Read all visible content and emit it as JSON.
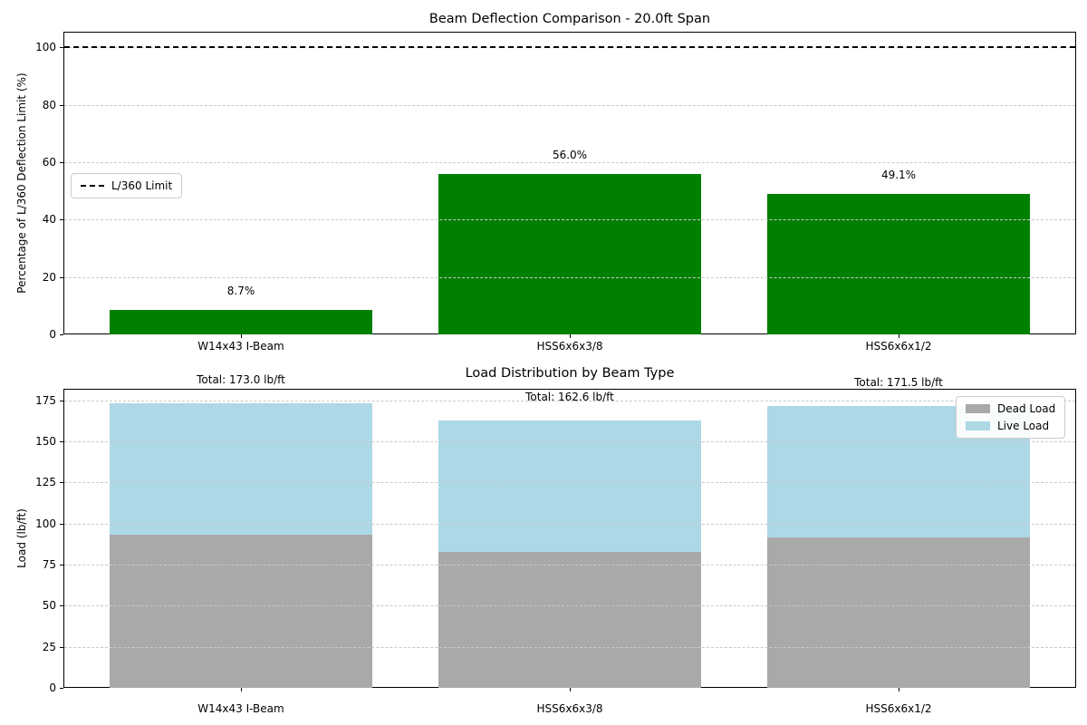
{
  "figure": {
    "background": "#ffffff"
  },
  "chart_data": [
    {
      "type": "bar",
      "title": "Beam Deflection Comparison - 20.0ft Span",
      "ylabel": "Percentage of L/360 Deflection Limit (%)",
      "xlabel": "",
      "categories": [
        "W14x43 I-Beam",
        "HSS6x6x3/8",
        "HSS6x6x1/2"
      ],
      "values": [
        8.7,
        56.0,
        49.1
      ],
      "bar_labels": [
        "8.7%",
        "56.0%",
        "49.1%"
      ],
      "bar_color": "#008000",
      "ylim": [
        0,
        105.5
      ],
      "ytick_values": [
        0,
        20,
        40,
        60,
        80,
        100
      ],
      "ytick_labels": [
        "0",
        "20",
        "40",
        "60",
        "80",
        "100"
      ],
      "grid": "horizontal dashed",
      "reference_line": {
        "value": 100,
        "style": "dashed",
        "color": "#000000",
        "label": "L/360 Limit"
      },
      "legend": {
        "position": "center-left",
        "entries": [
          {
            "label": "L/360 Limit",
            "swatch": "dashed-line",
            "color": "#000000"
          }
        ]
      }
    },
    {
      "type": "stacked-bar",
      "title": "Load Distribution by Beam Type",
      "ylabel": "Load (lb/ft)",
      "xlabel": "",
      "categories": [
        "W14x43 I-Beam",
        "HSS6x6x3/8",
        "HSS6x6x1/2"
      ],
      "series": [
        {
          "name": "Dead Load",
          "color": "#a9a9a9",
          "values": [
            93.0,
            82.6,
            91.5
          ]
        },
        {
          "name": "Live Load",
          "color": "#add8e6",
          "values": [
            80.0,
            80.0,
            80.0
          ]
        }
      ],
      "totals": [
        173.0,
        162.6,
        171.5
      ],
      "total_labels": [
        "Total: 173.0 lb/ft",
        "Total: 162.6 lb/ft",
        "Total: 171.5 lb/ft"
      ],
      "ylim": [
        0,
        182
      ],
      "ytick_values": [
        0,
        25,
        50,
        75,
        100,
        125,
        150,
        175
      ],
      "ytick_labels": [
        "0",
        "25",
        "50",
        "75",
        "100",
        "125",
        "150",
        "175"
      ],
      "grid": "horizontal dashed",
      "legend": {
        "position": "top-right",
        "entries": [
          {
            "label": "Dead Load",
            "swatch": "box",
            "color": "#a9a9a9"
          },
          {
            "label": "Live Load",
            "swatch": "box",
            "color": "#add8e6"
          }
        ]
      }
    }
  ],
  "colors": {
    "grid": "#c9c9c9",
    "spine": "#000000",
    "text": "#000000"
  }
}
